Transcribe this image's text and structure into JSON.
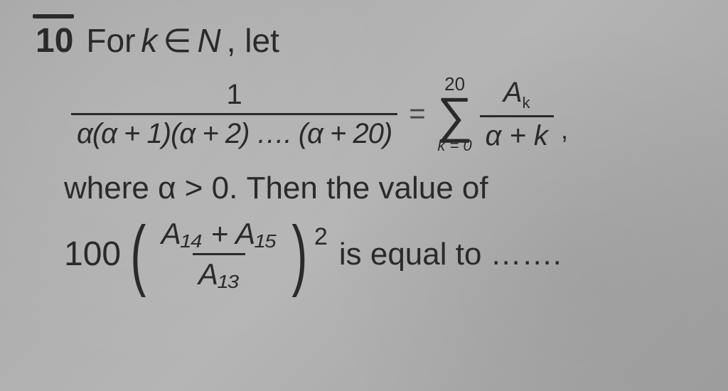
{
  "problem": {
    "number": "10",
    "intro_for": "For",
    "intro_var": "k",
    "intro_in": "∈",
    "intro_set": "N",
    "intro_let": ", let",
    "lhs_numerator": "1",
    "lhs_denominator": "α(α + 1)(α + 2) …. (α + 20)",
    "equals": "=",
    "sum_upper": "20",
    "sigma": "∑",
    "sum_lower": "k = 0",
    "rhs_num_sym": "A",
    "rhs_num_sub": "k",
    "rhs_den": "α + k",
    "trailing_comma": ",",
    "condition": "where α > 0. Then the value of",
    "const100": "100",
    "lp": "(",
    "rp": ")",
    "frac_num": "A₁₄ + A₁₅",
    "frac_den": "A₁₃",
    "square": "2",
    "tail": "is equal to ……."
  },
  "style": {
    "background_color": "#aaaaaa",
    "text_color": "#2a2a2a",
    "font_family": "Arial",
    "title_fontsize": 46,
    "math_fontsize": 40,
    "sigma_fontsize": 70,
    "paren_fontsize": 110
  }
}
